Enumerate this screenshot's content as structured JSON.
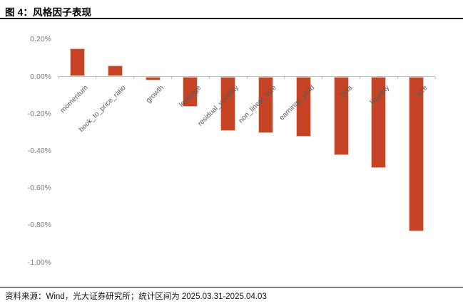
{
  "header": {
    "title": "图 4：风格因子表现"
  },
  "footer": {
    "source_note": "资料来源：Wind，光大证券研究所；统计区间为 2025.03.31-2025.04.03"
  },
  "colors": {
    "bar": "#C74325",
    "axis_line": "#BFBFBF",
    "y_tick_label": "#7A7A7A",
    "x_category_label": "#595959",
    "title_text": "#000000",
    "divider": "#000000"
  },
  "chart_data": {
    "type": "bar",
    "title": "图 4：风格因子表现",
    "categories": [
      "momentum",
      "book_to_price_ratio",
      "growth",
      "leverage",
      "residual_volatility",
      "non_linear_size",
      "earnings_yield",
      "beta",
      "liquidity",
      "size"
    ],
    "values": [
      0.15,
      0.06,
      -0.02,
      -0.16,
      -0.29,
      -0.3,
      -0.32,
      -0.42,
      -0.49,
      -0.83
    ],
    "value_unit": "%",
    "xlabel": "",
    "ylabel": "",
    "ylim": [
      -1.0,
      0.2
    ],
    "y_ticks": [
      {
        "label": "0.20%",
        "value": 0.2
      },
      {
        "label": "0.00%",
        "value": 0.0
      },
      {
        "label": "-0.20%",
        "value": -0.2
      },
      {
        "label": "-0.40%",
        "value": -0.4
      },
      {
        "label": "-0.60%",
        "value": -0.6
      },
      {
        "label": "-0.80%",
        "value": -0.8
      },
      {
        "label": "-1.00%",
        "value": -1.0
      }
    ],
    "grid": false,
    "legend": false,
    "bar_orientation": "vertical",
    "x_label_rotation_deg": 45
  }
}
